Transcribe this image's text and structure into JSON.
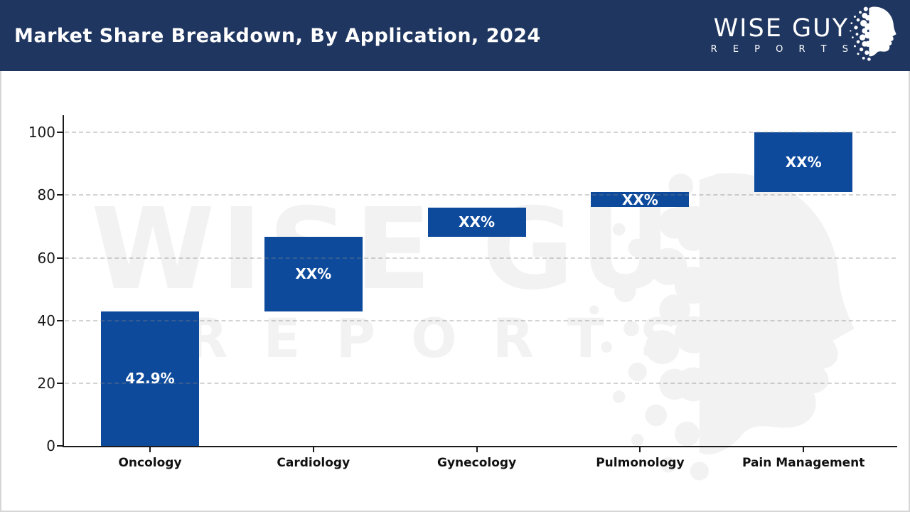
{
  "header": {
    "title": "Market Share Breakdown, By Application, 2024",
    "logo_line1": "WISE GUY",
    "logo_line2": "R E P O R T S",
    "bg_color": "#1f3660"
  },
  "watermark": {
    "line1": "WISE GUY",
    "line2": "REPORTS"
  },
  "chart_data": {
    "type": "bar",
    "subtype": "waterfall",
    "title": "Market Share Breakdown, By Application, 2024",
    "categories": [
      "Oncology",
      "Cardiology",
      "Gynecology",
      "Pulmonology",
      "Pain Management"
    ],
    "segments": [
      {
        "category": "Oncology",
        "label": "42.9%",
        "start": 0,
        "end": 42.9
      },
      {
        "category": "Cardiology",
        "label": "XX%",
        "start": 42.9,
        "end": 66.7
      },
      {
        "category": "Gynecology",
        "label": "XX%",
        "start": 66.7,
        "end": 76.1
      },
      {
        "category": "Pulmonology",
        "label": "XX%",
        "start": 76.2,
        "end": 81.0
      },
      {
        "category": "Pain Management",
        "label": "XX%",
        "start": 81.0,
        "end": 100.0
      }
    ],
    "yticks": [
      0,
      20,
      40,
      60,
      80,
      100
    ],
    "ylim": [
      0,
      105
    ],
    "xlabel": "",
    "ylabel": "",
    "grid": true,
    "grid_style": "dashed",
    "legend": "none",
    "bar_color": "#0d4a9c",
    "label_color": "#ffffff"
  }
}
